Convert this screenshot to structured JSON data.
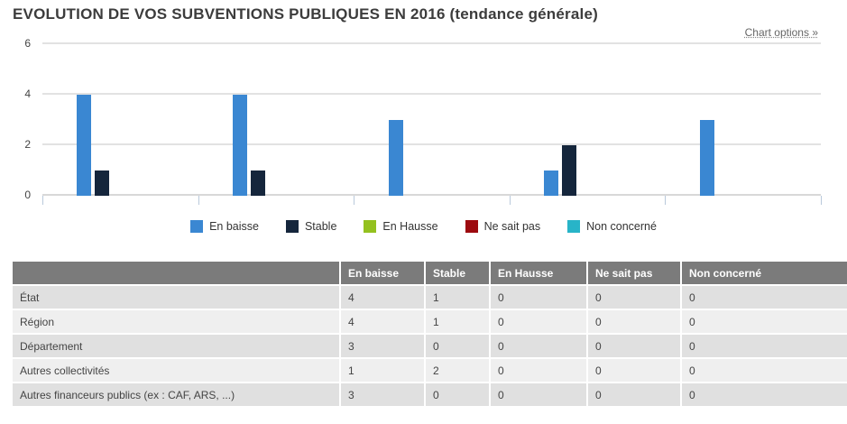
{
  "page": {
    "title": "EVOLUTION DE VOS SUBVENTIONS PUBLIQUES EN 2016 (tendance générale)",
    "chart_options_label": "Chart options »"
  },
  "colors": {
    "title_text": "#3c3c3c",
    "link_text": "#666666",
    "table_header_bg": "#7b7b7b",
    "table_row_dark": "#e0e0e0",
    "table_row_light": "#efefef",
    "gridline": "#e2e2e2",
    "axis_tick": "#b9c9db"
  },
  "chart_data": {
    "type": "bar",
    "title": "EVOLUTION DE VOS SUBVENTIONS PUBLIQUES EN 2016 (tendance générale)",
    "categories": [
      "État",
      "Région",
      "Département",
      "Autres collectivités",
      "Autres financeurs publics (ex : CAF, ARS, ...)"
    ],
    "series": [
      {
        "name": "En baisse",
        "color": "#3a87d2",
        "values": [
          4,
          4,
          3,
          1,
          3
        ]
      },
      {
        "name": "Stable",
        "color": "#15263c",
        "values": [
          1,
          1,
          0,
          2,
          0
        ]
      },
      {
        "name": "En Hausse",
        "color": "#94c11f",
        "values": [
          0,
          0,
          0,
          0,
          0
        ]
      },
      {
        "name": "Ne sait pas",
        "color": "#9d0a0f",
        "values": [
          0,
          0,
          0,
          0,
          0
        ]
      },
      {
        "name": "Non concerné",
        "color": "#28b4c8",
        "values": [
          0,
          0,
          0,
          0,
          0
        ]
      }
    ],
    "xlabel": "",
    "ylabel": "",
    "ylim": [
      0,
      6
    ],
    "yticks": [
      0,
      2,
      4,
      6
    ],
    "grid": true,
    "legend_position": "bottom",
    "x_tick_labels_shown": false
  },
  "table": {
    "columns": [
      "",
      "En baisse",
      "Stable",
      "En Hausse",
      "Ne sait pas",
      "Non concerné"
    ],
    "rows": [
      {
        "label": "État",
        "values": [
          4,
          1,
          0,
          0,
          0
        ]
      },
      {
        "label": "Région",
        "values": [
          4,
          1,
          0,
          0,
          0
        ]
      },
      {
        "label": "Département",
        "values": [
          3,
          0,
          0,
          0,
          0
        ]
      },
      {
        "label": "Autres collectivités",
        "values": [
          1,
          2,
          0,
          0,
          0
        ]
      },
      {
        "label": "Autres financeurs publics (ex : CAF, ARS, ...)",
        "values": [
          3,
          0,
          0,
          0,
          0
        ]
      }
    ]
  }
}
